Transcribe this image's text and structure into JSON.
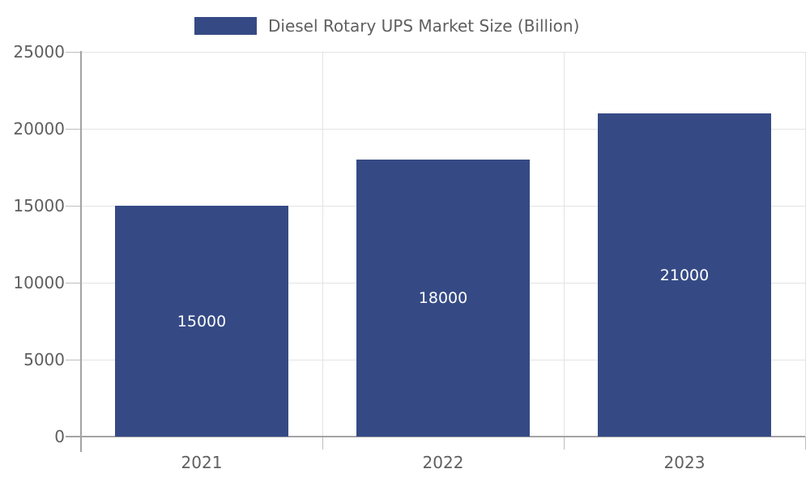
{
  "legend": {
    "label": "Diesel Rotary UPS Market Size (Billion)"
  },
  "colors": {
    "bar": "#354A85",
    "grid": "#e3e3e3",
    "axis": "#a3a3a3",
    "tick": "#bdbdbd",
    "text": "#5f5f5f",
    "value_label": "#ffffff"
  },
  "chart_data": {
    "type": "bar",
    "title": "Diesel Rotary UPS Market Size (Billion)",
    "categories": [
      "2021",
      "2022",
      "2023"
    ],
    "values": [
      15000,
      18000,
      21000
    ],
    "bar_labels": [
      "15000",
      "18000",
      "21000"
    ],
    "xlabel": "",
    "ylabel": "",
    "ylim": [
      0,
      25000
    ],
    "yticks": [
      0,
      5000,
      10000,
      15000,
      20000,
      25000
    ],
    "grid": true,
    "legend_position": "top"
  }
}
